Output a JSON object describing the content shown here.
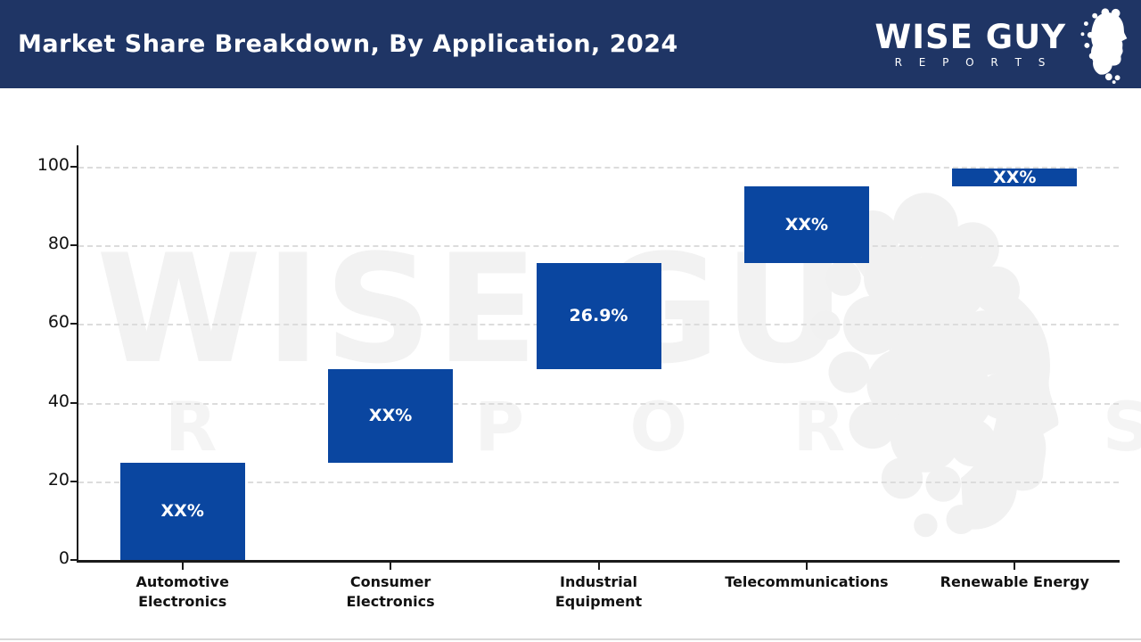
{
  "header": {
    "title": "Market Share Breakdown, By Application, 2024",
    "logo": {
      "line1": "WISE GUY",
      "line2": "R E P O R T S"
    }
  },
  "watermark": {
    "line1": "WISE GUY",
    "line2": "R E P O R T S"
  },
  "chart_data": {
    "type": "bar",
    "subtype": "floating-waterfall",
    "title": "Market Share Breakdown, By Application, 2024",
    "categories": [
      "Automotive Electronics",
      "Consumer Electronics",
      "Industrial Equipment",
      "Telecommunications",
      "Renewable Energy"
    ],
    "xtick_labels": [
      "Automotive\nElectronics",
      "Consumer\nElectronics",
      "Industrial\nEquipment",
      "Telecommunications",
      "Renewable Energy"
    ],
    "segments": [
      {
        "category": "Automotive Electronics",
        "start": 0,
        "end": 24.8,
        "label": "XX%"
      },
      {
        "category": "Consumer Electronics",
        "start": 24.8,
        "end": 48.6,
        "label": "XX%"
      },
      {
        "category": "Industrial Equipment",
        "start": 48.6,
        "end": 75.5,
        "label": "26.9%"
      },
      {
        "category": "Telecommunications",
        "start": 75.5,
        "end": 95.0,
        "label": "XX%"
      },
      {
        "category": "Renewable Energy",
        "start": 95.0,
        "end": 99.6,
        "label": "XX%"
      }
    ],
    "xlabel": "",
    "ylabel": "",
    "yticks": [
      0,
      20,
      40,
      60,
      80,
      100
    ],
    "ylim": [
      0,
      105
    ],
    "grid": "horizontal-dashed",
    "legend": "none",
    "colors": {
      "bar": "#0a46a0",
      "bar_label": "#ffffff",
      "header_bg": "#1f3565",
      "axis": "#1a1a1a",
      "gridline": "#dcdcdc",
      "watermark": "#f2f2f2"
    }
  }
}
